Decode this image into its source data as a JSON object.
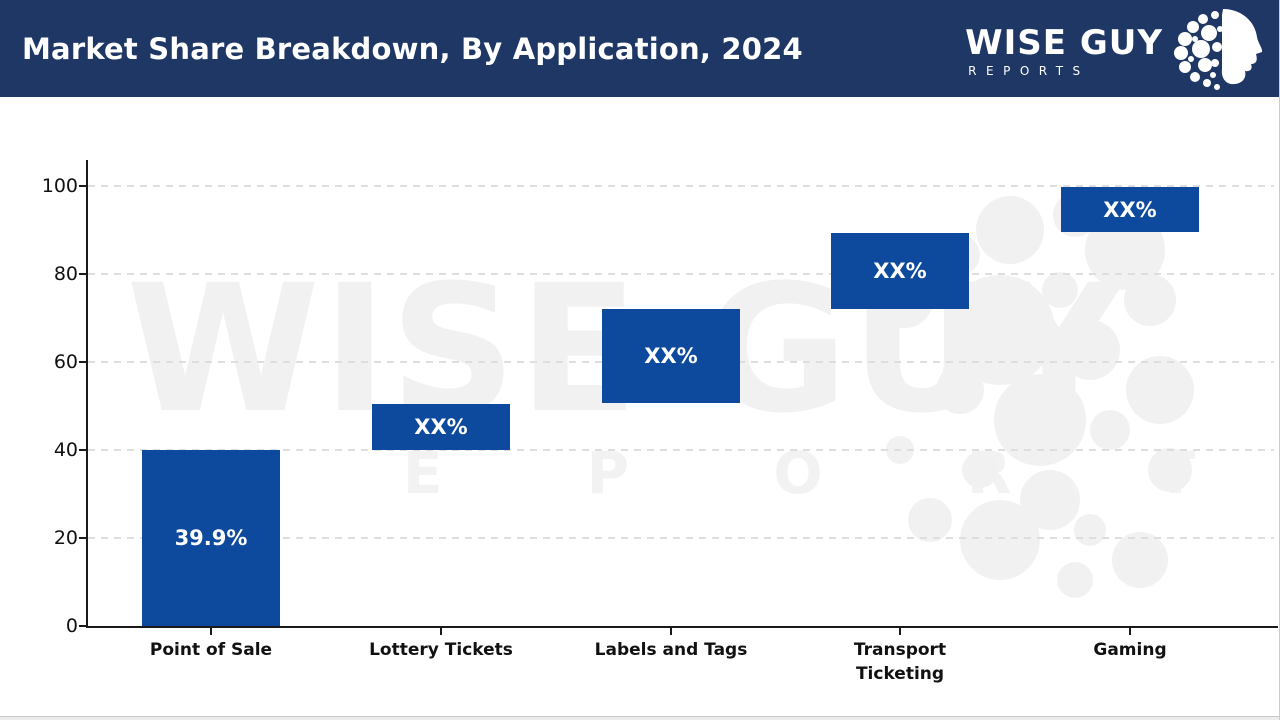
{
  "header": {
    "title": "Market Share Breakdown, By Application, 2024",
    "logo": {
      "line1": "WISE GUY",
      "line2": "REPORTS"
    }
  },
  "watermark": {
    "line1": "WISE GUY",
    "line2": "R E P O R T S"
  },
  "colors": {
    "header_bg": "#1e3765",
    "bar": "#0d4a9e",
    "grid": "#dedede",
    "axis": "#1a1a1a",
    "value_label": "#ffffff",
    "watermark": "#f1f1f1"
  },
  "chart_data": {
    "type": "bar",
    "subtype": "waterfall-cumulative",
    "title": "Market Share Breakdown, By Application, 2024",
    "categories": [
      "Point of Sale",
      "Lottery Tickets",
      "Labels and Tags",
      "Transport\nTicketing",
      "Gaming"
    ],
    "segments": [
      {
        "category": "Point of Sale",
        "value_label": "39.9%",
        "start": 0,
        "end": 39.9
      },
      {
        "category": "Lottery Tickets",
        "value_label": "XX%",
        "start": 39.9,
        "end": 50.5
      },
      {
        "category": "Labels and Tags",
        "value_label": "XX%",
        "start": 50.6,
        "end": 72.0
      },
      {
        "category": "Transport\nTicketing",
        "value_label": "XX%",
        "start": 72.1,
        "end": 89.3
      },
      {
        "category": "Gaming",
        "value_label": "XX%",
        "start": 89.5,
        "end": 99.8
      }
    ],
    "yticks": [
      0,
      20,
      40,
      60,
      80,
      100
    ],
    "ylim": [
      0,
      105
    ],
    "xlabel": "",
    "ylabel": "",
    "grid": "horizontal-dashed",
    "legend": "none"
  }
}
